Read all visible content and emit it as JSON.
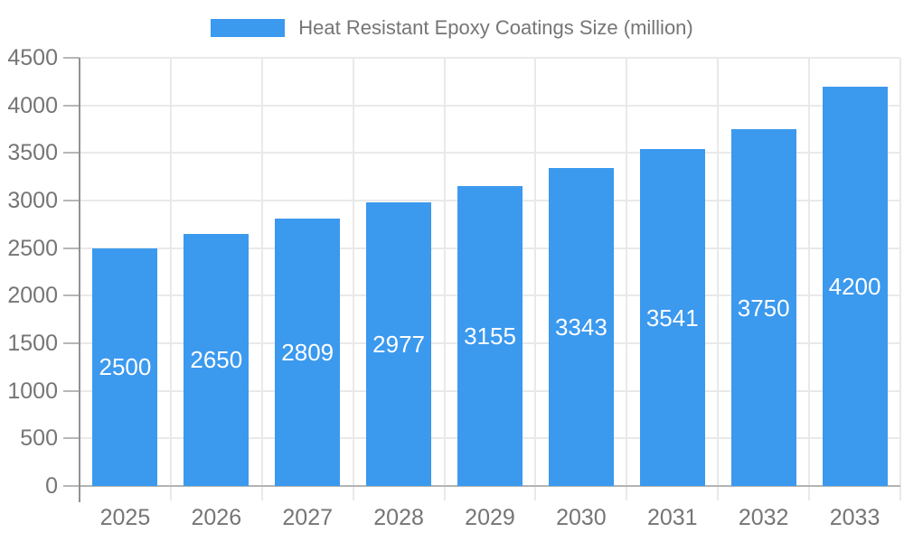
{
  "chart_data": {
    "type": "bar",
    "title": "Heat Resistant Epoxy Coatings Size (million)",
    "legend": {
      "label": "Heat Resistant Epoxy Coatings Size (million)",
      "position": "top-center"
    },
    "categories": [
      "2025",
      "2026",
      "2027",
      "2028",
      "2029",
      "2030",
      "2031",
      "2032",
      "2033"
    ],
    "series": [
      {
        "name": "Heat Resistant Epoxy Coatings Size (million)",
        "values": [
          2500,
          2650,
          2809,
          2977,
          3155,
          3343,
          3541,
          3750,
          4200
        ]
      }
    ],
    "bar_value_labels_shown": true,
    "xlabel": "",
    "ylabel": "",
    "ylim": [
      0,
      4500
    ],
    "y_ticks": [
      0,
      500,
      1000,
      1500,
      2000,
      2500,
      3000,
      3500,
      4000,
      4500
    ],
    "grid": true,
    "colors": {
      "bar": "#3B99EE",
      "bar_label": "#FFFFFF",
      "axis_text": "#757575",
      "legend_text": "#757575",
      "grid_line": "#E9E9E9",
      "axis_line": "#919191",
      "baseline": "#B3B3B3",
      "background": "#FFFFFF"
    }
  }
}
